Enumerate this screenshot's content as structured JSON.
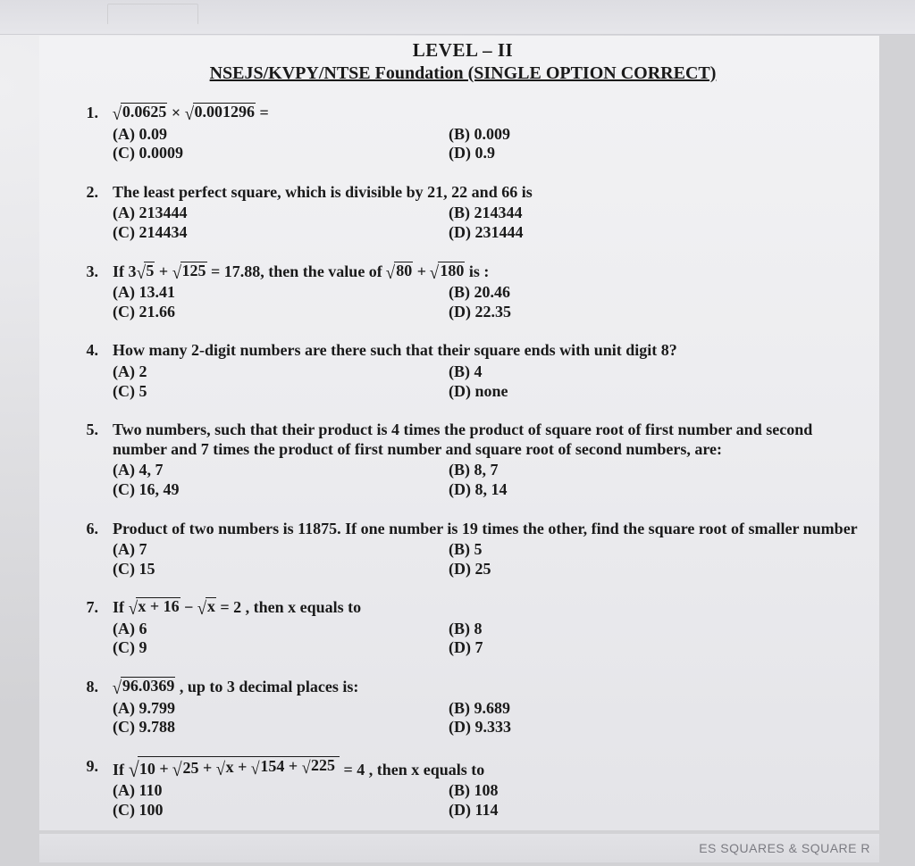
{
  "header": {
    "level": "LEVEL – II",
    "subtitle": "NSEJS/KVPY/NTSE Foundation (SINGLE OPTION CORRECT)"
  },
  "footer": {
    "snippet": "ES SQUARES & SQUARE R"
  },
  "questions": [
    {
      "num": "1.",
      "html": "<span class='sqrt'><span class='sign'>√</span><span class='rad'>0.0625</span></span> × <span class='sqrt'><span class='sign'>√</span><span class='rad'>0.001296</span></span> =",
      "opts": {
        "A": "0.09",
        "B": "0.009",
        "C": "0.0009",
        "D": "0.9"
      }
    },
    {
      "num": "2.",
      "text": "The least perfect square, which is divisible by 21, 22 and 66 is",
      "opts": {
        "A": "213444",
        "B": "214344",
        "C": "214434",
        "D": "231444"
      }
    },
    {
      "num": "3.",
      "html": "If 3<span class='sqrt'><span class='sign'>√</span><span class='rad'>5</span></span> + <span class='sqrt'><span class='sign'>√</span><span class='rad'>125</span></span> = 17.88, then the value of <span class='sqrt'><span class='sign'>√</span><span class='rad'>80</span></span> + <span class='sqrt'><span class='sign'>√</span><span class='rad'>180</span></span> is :",
      "opts": {
        "A": "13.41",
        "B": "20.46",
        "C": "21.66",
        "D": "22.35"
      }
    },
    {
      "num": "4.",
      "text": "How many 2-digit numbers are there such that their square ends with unit digit 8?",
      "opts": {
        "A": "2",
        "B": "4",
        "C": "5",
        "D": "none"
      }
    },
    {
      "num": "5.",
      "text": "Two numbers, such that their product is 4 times the product of square root of first number and second number and 7 times the product of first number and square root of second numbers, are:",
      "opts": {
        "A": "4, 7",
        "B": "8, 7",
        "C": "16, 49",
        "D": "8, 14"
      }
    },
    {
      "num": "6.",
      "text": "Product of two numbers is 11875. If one number is 19 times the other, find the square root of smaller number",
      "opts": {
        "A": "7",
        "B": "5",
        "C": "15",
        "D": "25"
      }
    },
    {
      "num": "7.",
      "html": "If <span class='sqrt'><span class='sign'>√</span><span class='rad'>x + 16</span></span> − <span class='sqrt'><span class='sign'>√</span><span class='rad'>x</span></span> = 2 , then x equals to",
      "opts": {
        "A": "6",
        "B": "8",
        "C": "9",
        "D": "7"
      }
    },
    {
      "num": "8.",
      "html": "<span class='sqrt'><span class='sign'>√</span><span class='rad'>96.0369</span></span> , up to 3 decimal places is:",
      "opts": {
        "A": "9.799",
        "B": "9.689",
        "C": "9.788",
        "D": "9.333"
      }
    },
    {
      "num": "9.",
      "html": "If <span class='sqrt n1'><span class='sign'>√</span><span class='rad'>10 + <span class='sqrt n2'><span class='sign'>√</span><span class='rad'>25 + <span class='sqrt n3'><span class='sign'>√</span><span class='rad'>x + <span class='sqrt n4'><span class='sign'>√</span><span class='rad'>154 + <span class='sqrt'><span class='sign'>√</span><span class='rad'>225</span></span></span></span></span></span></span></span></span></span> = 4 , then x equals to",
      "opts": {
        "A": "110",
        "B": "108",
        "C": "100",
        "D": "114"
      }
    }
  ]
}
